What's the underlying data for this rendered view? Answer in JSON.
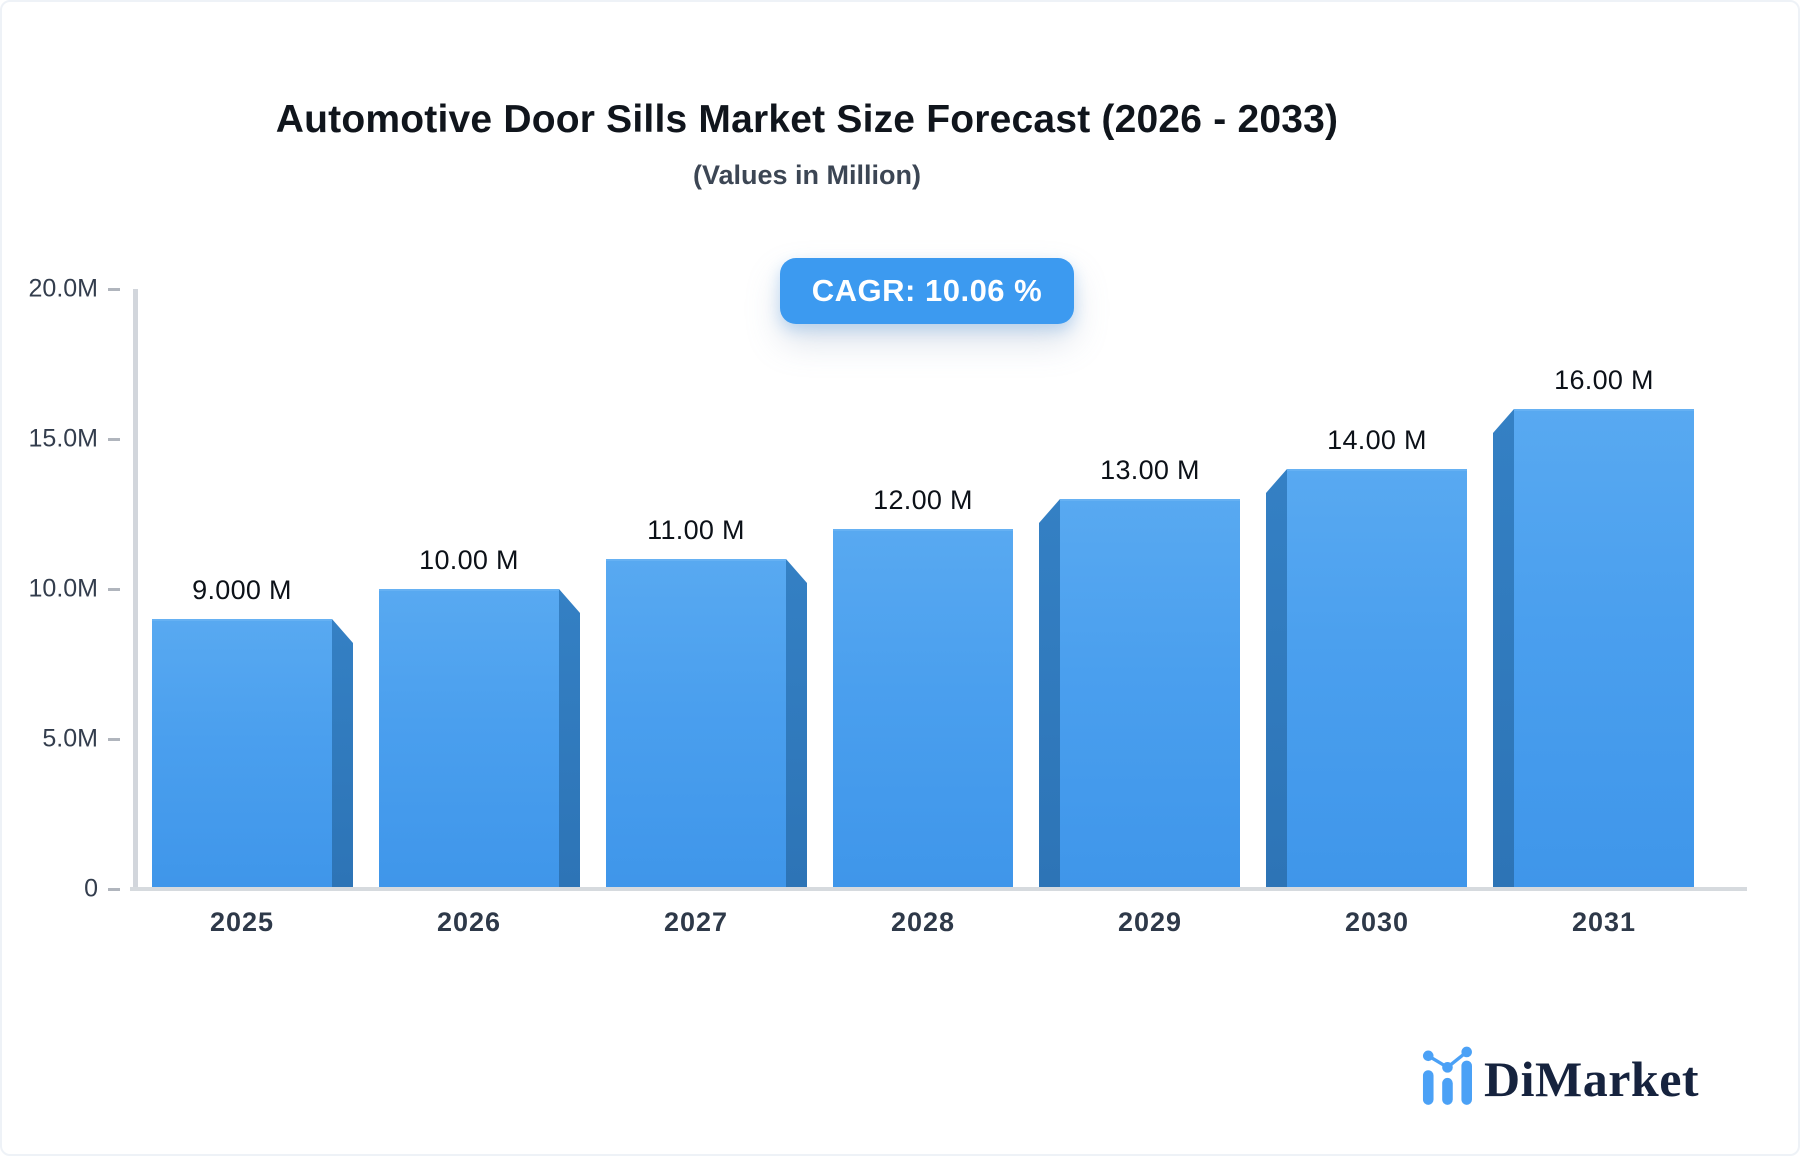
{
  "header": {
    "title": "Automotive Door Sills Market Size Forecast (2026 - 2033)",
    "subtitle": "(Values in Million)",
    "cagr_label": "CAGR: 10.06 %"
  },
  "brand": {
    "name": "DiMarket",
    "logo_icon": "bar-chart-with-trendline-icon"
  },
  "colors": {
    "bar_face": "#459dec",
    "bar_side": "#2e77b8",
    "badge_background": "#3c9af0",
    "axis_gray": "#d5d9de",
    "brand_navy": "#16233e",
    "brand_blue": "#4ba1f6"
  },
  "chart_data": {
    "type": "bar",
    "title": "Automotive Door Sills Market Size Forecast (2026 - 2033)",
    "subtitle": "(Values in Million)",
    "unit": "Million",
    "categories": [
      "2025",
      "2026",
      "2027",
      "2028",
      "2029",
      "2030",
      "2031"
    ],
    "values": [
      9,
      10,
      11,
      12,
      13,
      14,
      16
    ],
    "value_labels": [
      "9.000 M",
      "10.00 M",
      "11.00 M",
      "12.00 M",
      "13.00 M",
      "14.00 M",
      "16.00 M"
    ],
    "xlabel": "",
    "ylabel": "",
    "ylim": [
      0,
      20
    ],
    "y_ticks_bottom_to_top": [
      "0",
      "5.0M",
      "10.0M",
      "15.0M",
      "20.0M"
    ],
    "grid": false,
    "legend": false,
    "annotations": [
      "CAGR: 10.06 %"
    ]
  }
}
